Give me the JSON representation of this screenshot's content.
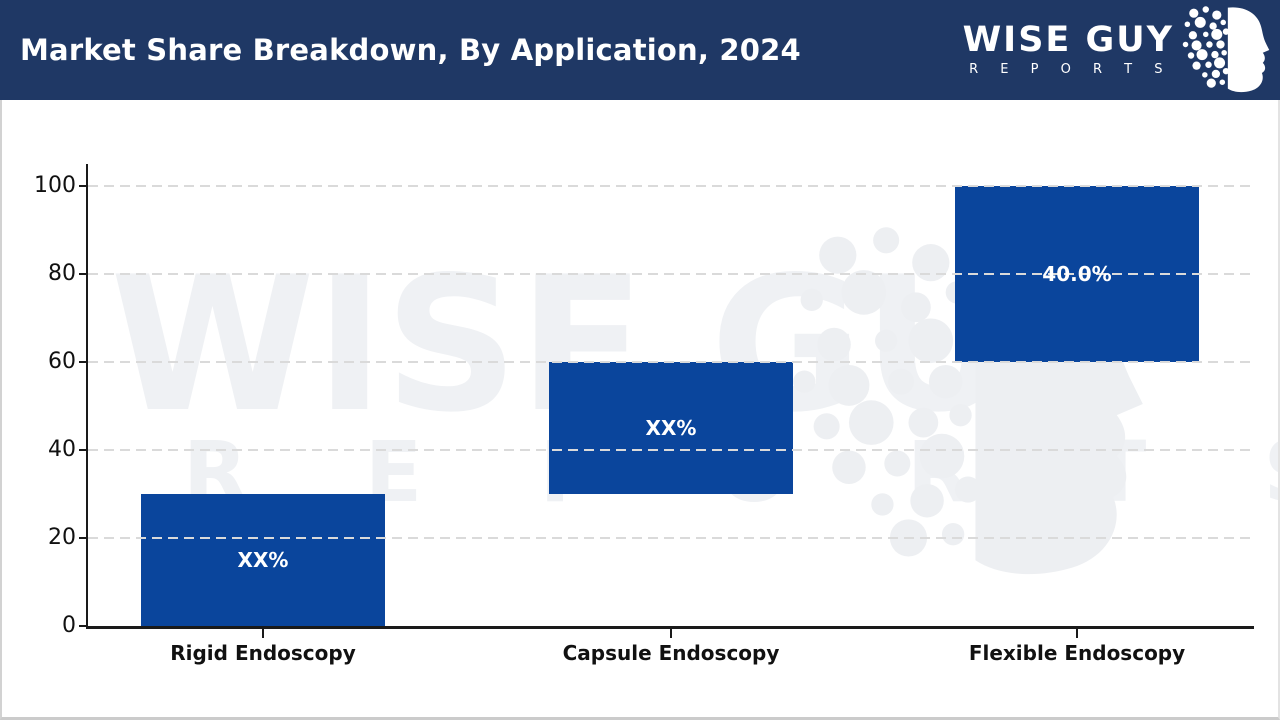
{
  "header": {
    "title": "Market Share Breakdown, By Application, 2024",
    "logo": {
      "line1": "WISE GUY",
      "line2": "R E P O R T S"
    }
  },
  "watermark": {
    "line1": "WISE GUY",
    "line2": "R E P O R T S"
  },
  "chart_data": {
    "type": "bar",
    "subtype": "waterfall-stacked-segments",
    "title": "Market Share Breakdown, By Application, 2024",
    "categories": [
      "Rigid Endoscopy",
      "Capsule Endoscopy",
      "Flexible Endoscopy"
    ],
    "segments": [
      {
        "category": "Rigid Endoscopy",
        "start": 0,
        "end": 30,
        "label": "XX%"
      },
      {
        "category": "Capsule Endoscopy",
        "start": 30,
        "end": 60,
        "label": "XX%"
      },
      {
        "category": "Flexible Endoscopy",
        "start": 60,
        "end": 100,
        "label": "40.0%"
      }
    ],
    "ylim": [
      0,
      100
    ],
    "yticks": [
      0,
      20,
      40,
      60,
      80,
      100
    ],
    "xlabel": "",
    "ylabel": "",
    "grid": "horizontal-dashed",
    "legend": "none",
    "bar_color": "#0a459c",
    "bar_label_color": "#ffffff",
    "axis_color": "#1a1a1a",
    "gridline_color": "#dadada"
  },
  "colors": {
    "header_bg": "#1f3865",
    "watermark": "#eff1f4",
    "page_bg": "#ffffff"
  }
}
